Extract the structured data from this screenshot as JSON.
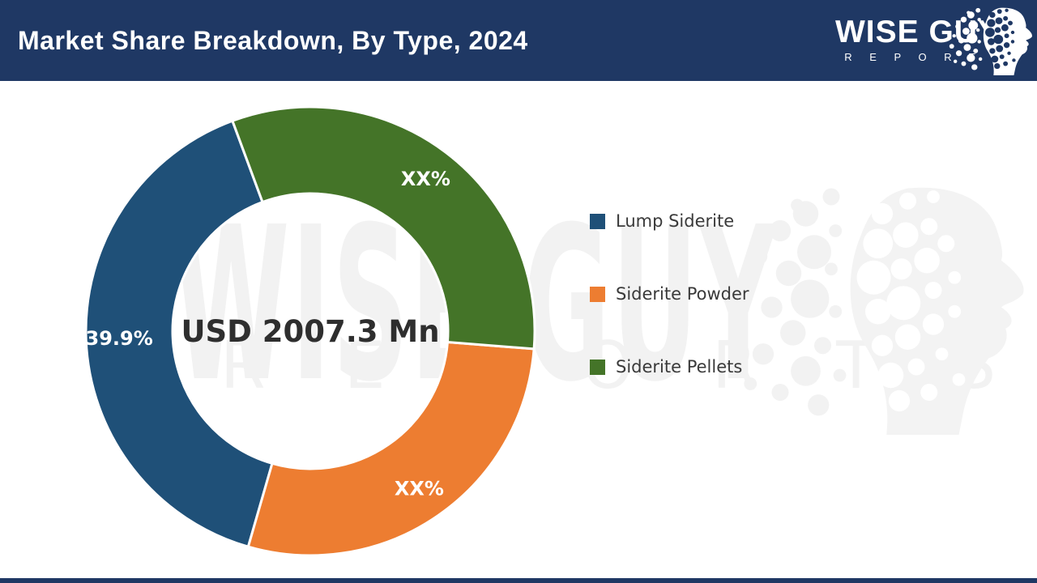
{
  "header": {
    "title": "Market Share Breakdown, By Type, 2024",
    "logo": {
      "name": "WISE GUY",
      "tagline": "R E P O R T S",
      "icon": "face-profile-dots-icon"
    }
  },
  "colors": {
    "brand_navy": "#1F3864",
    "series_blue": "#1F5078",
    "series_orange": "#ED7D31",
    "series_green": "#447428"
  },
  "chart_data": {
    "type": "pie",
    "subtype": "donut",
    "title": "Market Share Breakdown, By Type, 2024",
    "center_label": "USD 2007.3 Mn",
    "start_angle_deg": 110.3,
    "direction": "counterclockwise",
    "legend_position": "right",
    "series": [
      {
        "name": "Lump Siderite",
        "value_pct": 39.9,
        "label": "39.9%",
        "color": "#1F5078"
      },
      {
        "name": "Siderite Powder",
        "value_pct": 28.2,
        "label": "XX%",
        "color": "#ED7D31"
      },
      {
        "name": "Siderite Pellets",
        "value_pct": 31.9,
        "label": "XX%",
        "color": "#447428"
      }
    ]
  },
  "legend": {
    "items": [
      {
        "label": "Lump Siderite",
        "color": "#1F5078"
      },
      {
        "label": "Siderite Powder",
        "color": "#ED7D31"
      },
      {
        "label": "Siderite Pellets",
        "color": "#447428"
      }
    ]
  },
  "watermark": {
    "line1": "WISE GUY",
    "line2": "R E P O R T S",
    "icon": "face-profile-dots-icon"
  }
}
